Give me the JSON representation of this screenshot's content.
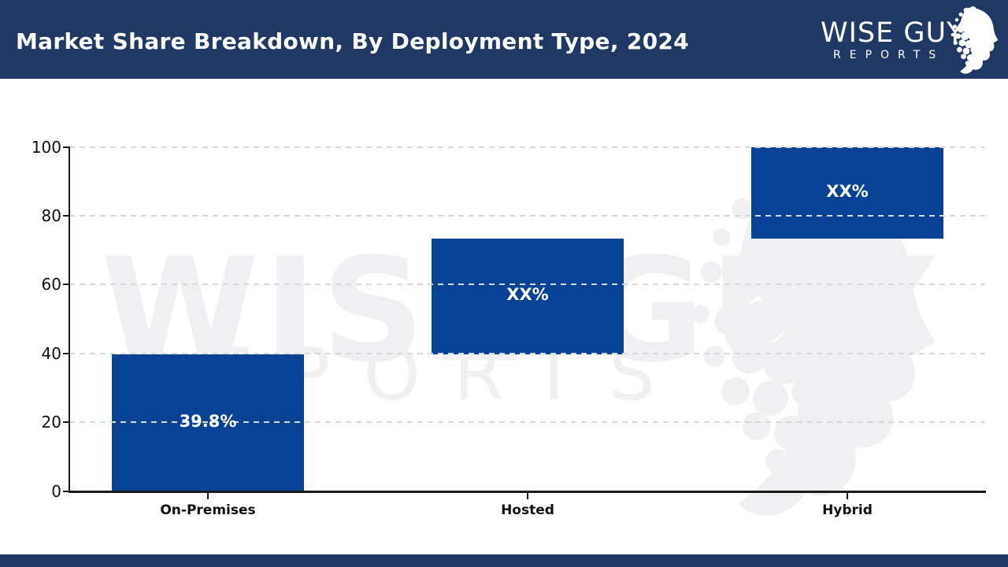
{
  "header": {
    "title": "Market Share Breakdown, By Deployment Type, 2024",
    "logo": {
      "name": "WISE GUY",
      "tagline": "REPORTS"
    }
  },
  "watermark": {
    "line1": "WISE GUY",
    "line2": "REPORTS"
  },
  "colors": {
    "header_bg": "#1f3864",
    "footer_bg": "#1f3864",
    "bar": "#074294",
    "bar_label_text": "#ffffff",
    "gridline": "#d8d8d8",
    "axis": "#1a1a1a",
    "tick_label": "#111111",
    "watermark": "#f0f0f2"
  },
  "chart_data": {
    "type": "bar",
    "subtype": "waterfall",
    "title": "Market Share Breakdown, By Deployment Type, 2024",
    "categories": [
      "On-Premises",
      "Hosted",
      "Hybrid"
    ],
    "segments": [
      {
        "category": "On-Premises",
        "start": 0,
        "end": 39.8,
        "label": "39.8%"
      },
      {
        "category": "Hosted",
        "start": 39.8,
        "end": 73.4,
        "label": "XX%"
      },
      {
        "category": "Hybrid",
        "start": 73.4,
        "end": 100,
        "label": "XX%"
      }
    ],
    "yticks": [
      0,
      20,
      40,
      60,
      80,
      100
    ],
    "ylim": [
      0,
      105
    ],
    "xlabel": "",
    "ylabel": "",
    "grid": "horizontal-dashed",
    "legend": "none",
    "bar_color": "#074294",
    "value_labels_inside": true
  }
}
